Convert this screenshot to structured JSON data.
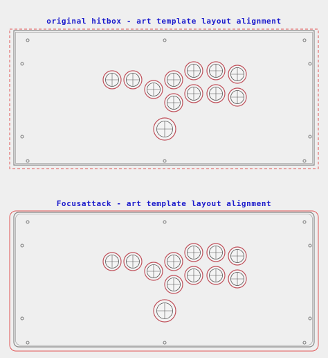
{
  "panels": [
    {
      "id": "hitbox",
      "title": "original hitbox - art template layout alignment",
      "outline_style": "dashed",
      "outline_color": "#e05555",
      "plate_color": "#888888"
    },
    {
      "id": "focusattack",
      "title": "Focusattack  - art template layout alignment",
      "outline_style": "solid",
      "outline_color": "#e05555",
      "plate_color": "#888888"
    }
  ],
  "colors": {
    "title": "#1a1acc",
    "button_ring": "#c0505a",
    "button_inner": "#555555",
    "screw_hole": "#777777",
    "background": "#efefef"
  }
}
